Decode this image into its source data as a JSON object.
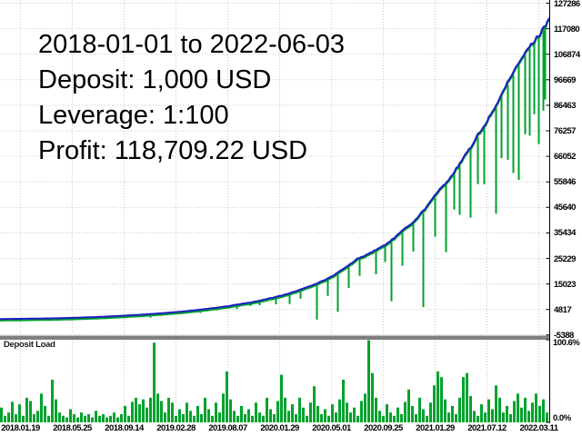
{
  "colors": {
    "balance_blue": "#1e1ec2",
    "equity_green": "#00a22d",
    "grid": "#cacaca",
    "separator": "#7f7f7f",
    "axis": "#000000",
    "background": "#ffffff"
  },
  "chart_data": [
    {
      "type": "line",
      "name": "balance-equity-growth",
      "title": "",
      "annotations": [
        "2018-01-01 to 2022-06-03",
        "Deposit: 1,000 USD",
        "Leverage: 1:100",
        "Profit: 118,709.22 USD"
      ],
      "y_tick_values": [
        127286,
        117080,
        106874,
        96669,
        86463,
        76257,
        66052,
        55846,
        45640,
        35434,
        25229,
        15023,
        4817,
        -5388
      ],
      "x_tick_labels": [
        "2018.01.19",
        "2018.05.25",
        "2018.09.14",
        "2019.02.28",
        "2019.08.07",
        "2020.01.29",
        "2020.05.01",
        "2020.09.25",
        "2021.01.29",
        "2021.07.12",
        "2022.03.11"
      ],
      "ylim": [
        -5388,
        127286
      ],
      "grid": "dotted",
      "legend": "off",
      "series": [
        {
          "name": "Balance",
          "color": "#1e1ec2",
          "t": [
            0,
            0.05,
            0.1,
            0.15,
            0.2,
            0.25,
            0.3,
            0.35,
            0.4,
            0.45,
            0.5,
            0.55,
            0.6,
            0.65,
            0.7,
            0.75,
            0.8,
            0.84,
            0.88,
            0.92,
            0.95,
            0.98,
            1.0
          ],
          "values": [
            1000,
            1120,
            1300,
            1600,
            2050,
            2650,
            3400,
            4400,
            5700,
            7400,
            9700,
            13000,
            17500,
            25000,
            30500,
            39500,
            52500,
            64000,
            78000,
            93600,
            105500,
            114500,
            121000
          ]
        },
        {
          "name": "Equity",
          "color": "#00a22d",
          "drawdowns": [
            [
              0.041,
              0.72
            ],
            [
              0.079,
              0.84
            ],
            [
              0.108,
              0.68
            ],
            [
              0.166,
              0.76
            ],
            [
              0.185,
              0.82
            ],
            [
              0.225,
              0.8
            ],
            [
              0.252,
              0.7
            ],
            [
              0.273,
              0.52
            ],
            [
              0.306,
              0.78
            ],
            [
              0.334,
              0.8
            ],
            [
              0.364,
              0.72
            ],
            [
              0.394,
              0.8
            ],
            [
              0.43,
              0.75
            ],
            [
              0.455,
              0.82
            ],
            [
              0.472,
              0.78
            ],
            [
              0.502,
              0.7
            ],
            [
              0.526,
              0.62
            ],
            [
              0.546,
              0.72
            ],
            [
              0.576,
              0.05
            ],
            [
              0.596,
              0.6
            ],
            [
              0.615,
              0.2
            ],
            [
              0.634,
              0.6
            ],
            [
              0.654,
              0.72
            ],
            [
              0.684,
              0.66
            ],
            [
              0.7,
              0.78
            ],
            [
              0.712,
              0.25
            ],
            [
              0.732,
              0.62
            ],
            [
              0.752,
              0.7
            ],
            [
              0.77,
              0.13
            ],
            [
              0.791,
              0.68
            ],
            [
              0.811,
              0.5
            ],
            [
              0.826,
              0.75
            ],
            [
              0.836,
              0.68
            ],
            [
              0.856,
              0.6
            ],
            [
              0.87,
              0.74
            ],
            [
              0.881,
              0.7
            ],
            [
              0.902,
              0.5
            ],
            [
              0.913,
              0.72
            ],
            [
              0.924,
              0.68
            ],
            [
              0.934,
              0.6
            ],
            [
              0.944,
              0.55
            ],
            [
              0.955,
              0.7
            ],
            [
              0.963,
              0.68
            ],
            [
              0.972,
              0.74
            ],
            [
              0.98,
              0.62
            ],
            [
              0.988,
              0.72
            ],
            [
              0.992,
              0.75
            ]
          ]
        }
      ]
    },
    {
      "type": "bar",
      "name": "deposit-load",
      "title": "Deposit Load",
      "y_axis_labels": [
        "100.6%",
        "0.0%"
      ],
      "ylim": [
        0,
        100.6
      ],
      "bar_color": "#00a22d",
      "values_pct": [
        18,
        8,
        12,
        25,
        10,
        22,
        8,
        30,
        26,
        10,
        14,
        35,
        20,
        8,
        52,
        28,
        12,
        8,
        6,
        16,
        10,
        6,
        12,
        8,
        10,
        6,
        14,
        8,
        10,
        6,
        8,
        12,
        6,
        10,
        20,
        8,
        25,
        30,
        22,
        28,
        18,
        30,
        97,
        35,
        26,
        12,
        30,
        24,
        8,
        16,
        10,
        24,
        14,
        8,
        20,
        10,
        30,
        16,
        8,
        24,
        12,
        35,
        62,
        28,
        14,
        8,
        20,
        10,
        16,
        8,
        24,
        12,
        8,
        30,
        16,
        10,
        26,
        58,
        30,
        14,
        22,
        10,
        30,
        18,
        8,
        24,
        44,
        20,
        10,
        16,
        8,
        22,
        12,
        28,
        52,
        24,
        12,
        18,
        8,
        26,
        35,
        100,
        60,
        30,
        14,
        8,
        22,
        12,
        8,
        18,
        10,
        25,
        40,
        20,
        10,
        30,
        16,
        8,
        24,
        45,
        62,
        55,
        28,
        12,
        20,
        10,
        30,
        55,
        60,
        32,
        14,
        8,
        22,
        12,
        28,
        16,
        45,
        30,
        12,
        20,
        10,
        26,
        35,
        18,
        30,
        14,
        24,
        35,
        20,
        28,
        12
      ]
    }
  ]
}
